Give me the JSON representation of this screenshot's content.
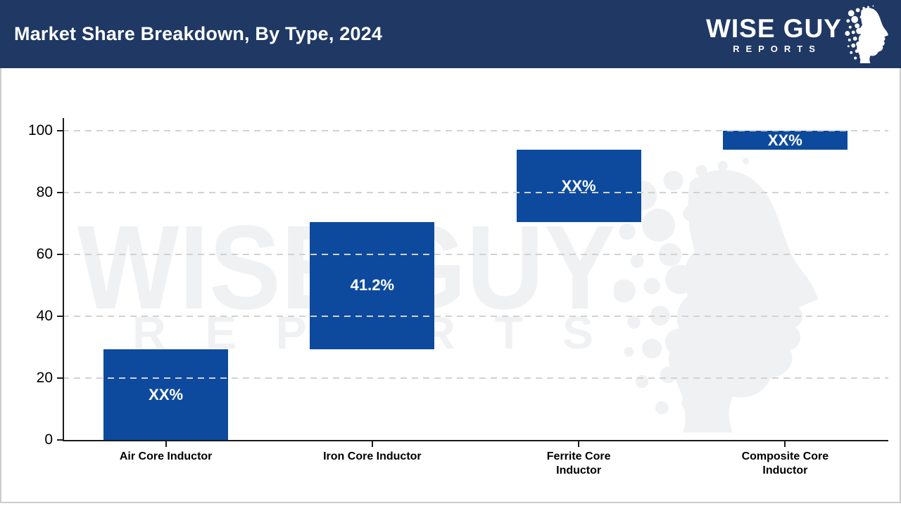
{
  "header": {
    "title": "Market Share Breakdown, By Type, 2024",
    "logo": {
      "line1": "WISE GUY",
      "line2": "REPORTS"
    }
  },
  "watermark": {
    "line1": "WISE GUY",
    "line2": "REPORTS"
  },
  "chart_data": {
    "type": "bar",
    "subtype": "waterfall",
    "title": "Market Share Breakdown, By Type, 2024",
    "categories": [
      "Air Core Inductor",
      "Iron Core Inductor",
      "Ferrite Core Inductor",
      "Composite Core Inductor"
    ],
    "category_lines": [
      [
        "Air Core Inductor"
      ],
      [
        "Iron Core Inductor"
      ],
      [
        "Ferrite Core",
        "Inductor"
      ],
      [
        "Composite Core",
        "Inductor"
      ]
    ],
    "bars": [
      {
        "category": "Air Core Inductor",
        "label": "XX%",
        "start": 0,
        "end": 29.3,
        "value": 29.3
      },
      {
        "category": "Iron Core Inductor",
        "label": "41.2%",
        "start": 29.3,
        "end": 70.5,
        "value": 41.2
      },
      {
        "category": "Ferrite Core Inductor",
        "label": "XX%",
        "start": 70.5,
        "end": 93.8,
        "value": 23.3
      },
      {
        "category": "Composite Core Inductor",
        "label": "XX%",
        "start": 93.8,
        "end": 100,
        "value": 6.2
      }
    ],
    "y_ticks": [
      0,
      20,
      40,
      60,
      80,
      100
    ],
    "ylim": [
      0,
      105
    ],
    "xlabel": "",
    "ylabel": "",
    "grid": "horizontal-dashed",
    "legend": "none",
    "bar_color": "#0d4a9e"
  },
  "colors": {
    "header_bg": "#1f3864",
    "bar": "#0d4a9e",
    "gridline": "#d2d2d2",
    "axis": "#1a1a1a",
    "watermark": "#f0f1f3",
    "page_border": "#cccccc"
  }
}
